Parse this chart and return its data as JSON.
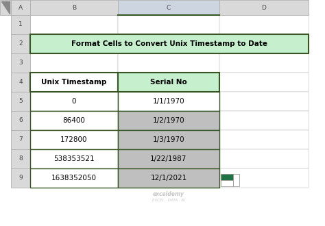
{
  "title": "Format Cells to Convert Unix Timestamp to Date",
  "col_headers": [
    "Unix Timestamp",
    "Serial No"
  ],
  "rows": [
    [
      "0",
      "1/1/1970"
    ],
    [
      "86400",
      "1/2/1970"
    ],
    [
      "172800",
      "1/3/1970"
    ],
    [
      "538353521",
      "1/22/1987"
    ],
    [
      "1638352050",
      "12/1/2021"
    ]
  ],
  "bg_color": "#ffffff",
  "title_fill": "#c6efce",
  "title_border": "#375623",
  "header_fill_left": "#ffffff",
  "header_fill_right": "#c6efce",
  "header_border": "#375623",
  "data_fill_left": "#ffffff",
  "data_fill_right_row0": "#ffffff",
  "data_fill_right_grey": "#bfbfbf",
  "data_border": "#375623",
  "excel_header_bg": "#d9d9d9",
  "excel_col_C_header": "#cdd5e0",
  "excel_border_color": "#b0b0b0",
  "excel_col_labels": [
    "A",
    "B",
    "C",
    "D"
  ],
  "excel_row_labels": [
    "1",
    "2",
    "3",
    "4",
    "5",
    "6",
    "7",
    "8",
    "9"
  ],
  "watermark_color": "#b0b0b0",
  "font_size_title": 7.5,
  "font_size_data": 7.5,
  "font_size_header_labels": 6.5,
  "font_size_excel_labels": 6.5
}
